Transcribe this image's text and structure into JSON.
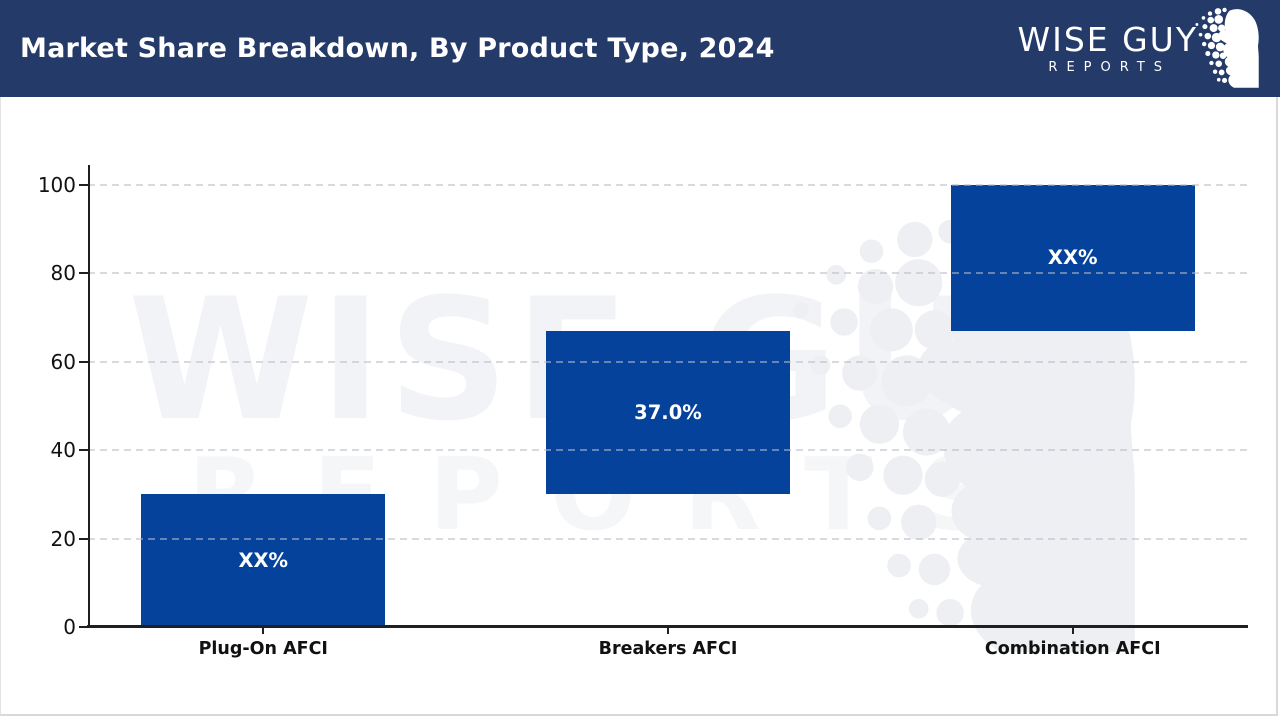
{
  "header": {
    "title": "Market Share Breakdown, By Product Type, 2024",
    "bg_color": "#243a68",
    "brand": {
      "wordmark": "WISE GUY",
      "tagline": "REPORTS"
    }
  },
  "watermark": {
    "wordmark": "WISE GUY",
    "tagline": "REPORTS"
  },
  "chart_data": {
    "type": "bar",
    "subtype": "waterfall (floating cumulative segments)",
    "title": "Market Share Breakdown, By Product Type, 2024",
    "categories": [
      "Plug-On AFCI",
      "Breakers AFCI",
      "Combination AFCI"
    ],
    "series": [
      {
        "name": "Market share (%)",
        "segment_start": [
          0,
          30,
          67
        ],
        "segment_end": [
          30,
          67,
          100
        ],
        "values": [
          30,
          37,
          33
        ],
        "labels": [
          "XX%",
          "37.0%",
          "XX%"
        ]
      }
    ],
    "bar_color": "#04429c",
    "bar_label_color": "#ffffff",
    "ylim": [
      0,
      100
    ],
    "yticks": [
      0,
      20,
      40,
      60,
      80,
      100
    ],
    "xlabel": "",
    "ylabel": "",
    "grid": "horizontal dashed gray",
    "legend": "none"
  }
}
